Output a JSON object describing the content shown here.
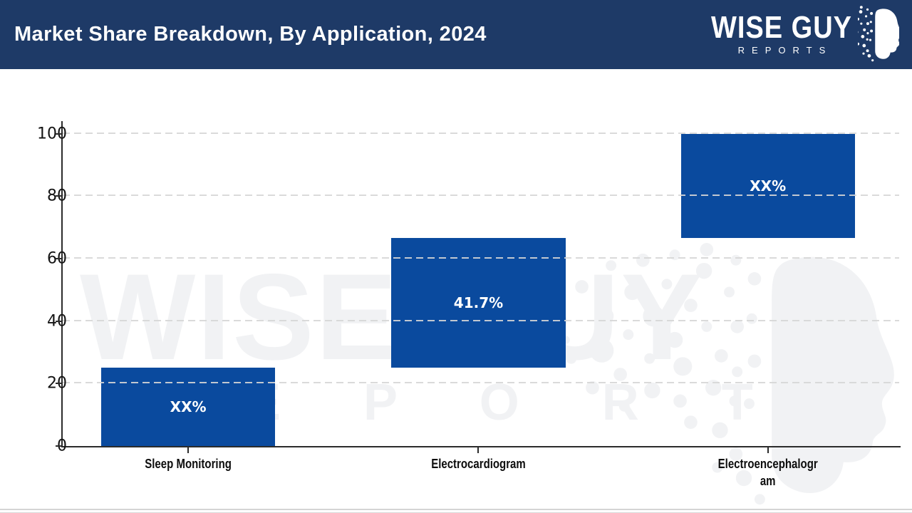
{
  "header": {
    "title": "Market Share Breakdown, By Application, 2024",
    "bg_color": "#1e3a67",
    "logo": {
      "line1": "WISE GUY",
      "line2": "REPORTS"
    }
  },
  "watermark": {
    "line1": "WISE GUY",
    "line2": "R E P O R T S"
  },
  "colors": {
    "header_bg": "#1e3a67",
    "bar": "#0a4a9e",
    "grid": "#d6d6d6",
    "axis": "#2b2b2b",
    "bar_label_text": "#ffffff",
    "watermark": "#f1f2f4"
  },
  "chart_data": {
    "type": "bar",
    "variant": "floating-segment-bars",
    "title": "Market Share Breakdown, By Application, 2024",
    "categories": [
      "Sleep Monitoring",
      "Electrocardiogram",
      "Electroencephalogram"
    ],
    "category_display_lines": [
      [
        "Sleep Monitoring"
      ],
      [
        "Electrocardiogram"
      ],
      [
        "Electroencephalogr",
        "am"
      ]
    ],
    "segments": [
      {
        "category": "Sleep Monitoring",
        "start": 0,
        "end": 25,
        "label": "XX%"
      },
      {
        "category": "Electrocardiogram",
        "start": 25,
        "end": 66.7,
        "label": "41.7%"
      },
      {
        "category": "Electroencephalogram",
        "start": 66.7,
        "end": 100,
        "label": "XX%"
      }
    ],
    "xlabel": "",
    "ylabel": "",
    "yticks": [
      0,
      20,
      40,
      60,
      80,
      100
    ],
    "ylim": [
      0,
      104
    ],
    "grid": "horizontal-dashed-over-bars",
    "legend": "none",
    "layout": {
      "center_fractions": [
        0.15,
        0.497,
        0.843
      ],
      "bar_width_fraction": 0.208
    }
  }
}
